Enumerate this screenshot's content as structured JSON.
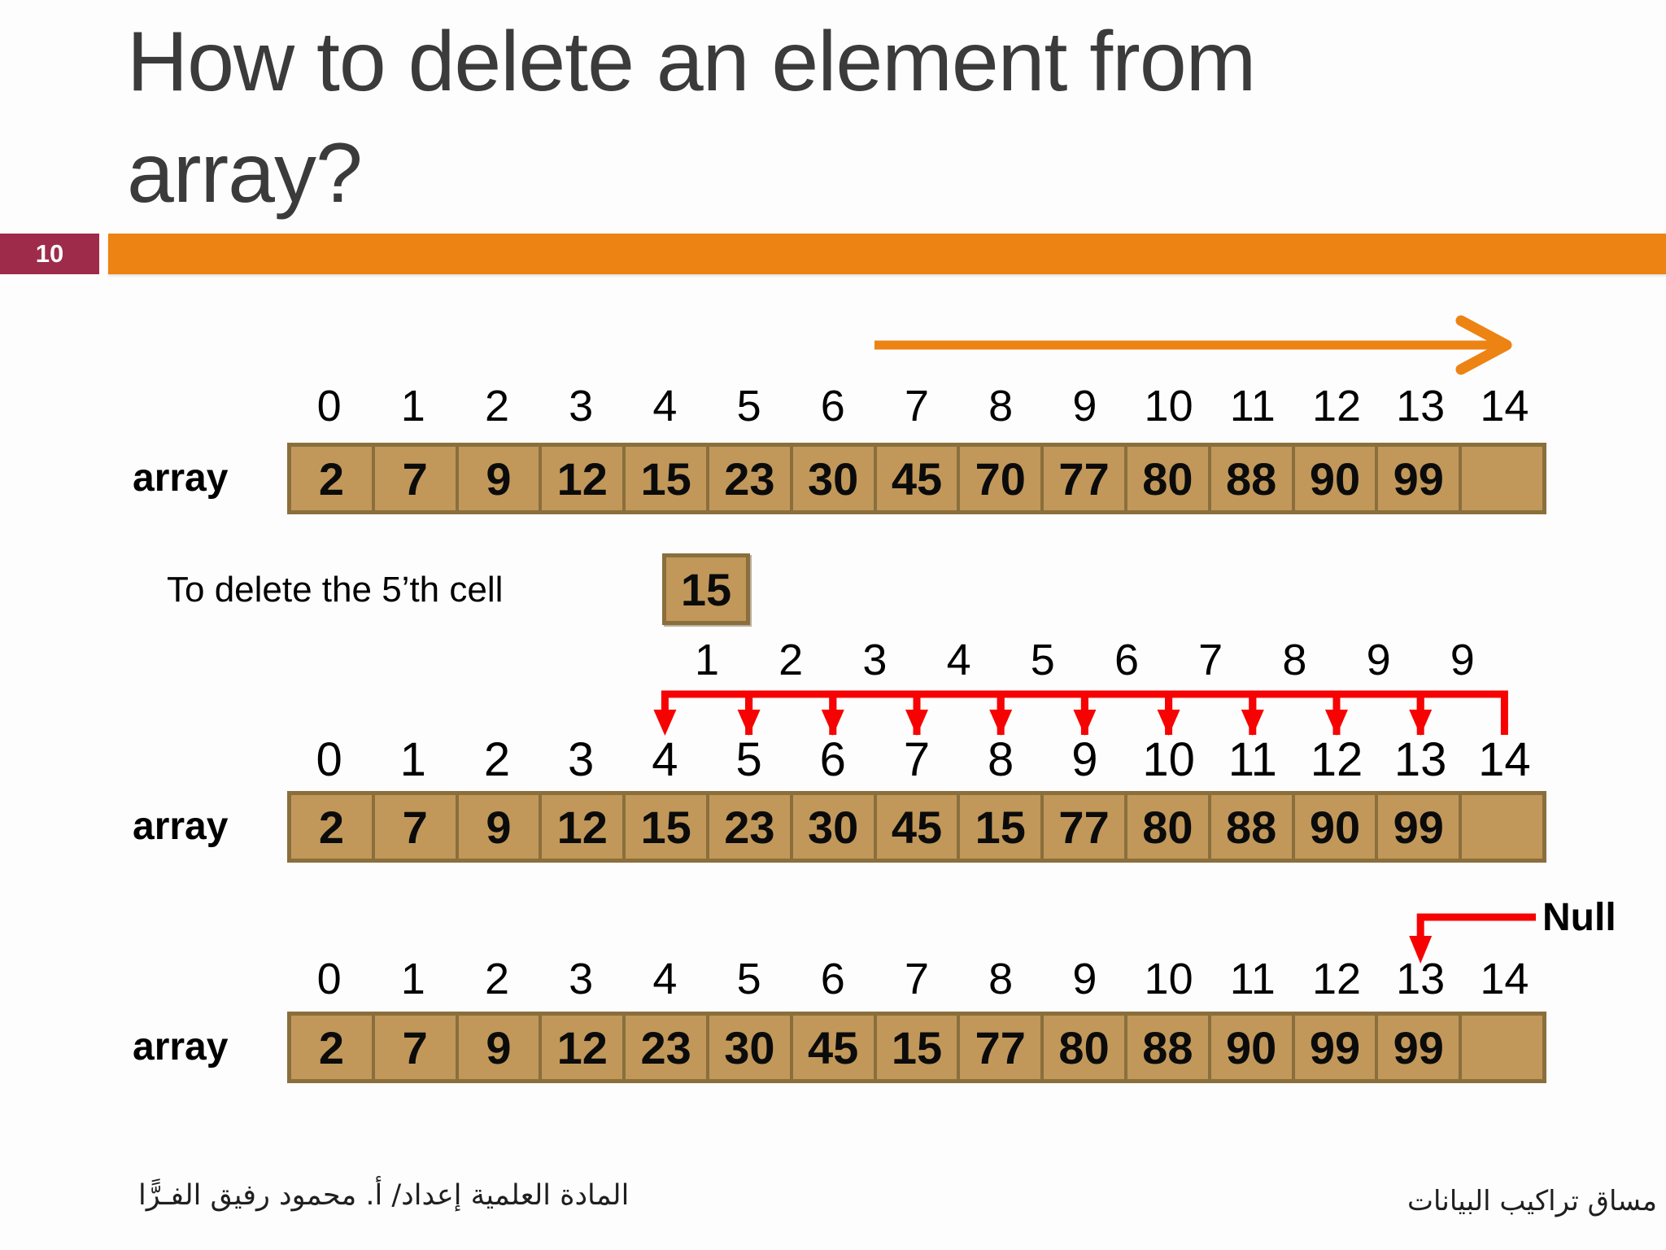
{
  "page_number": "10",
  "title": "How to delete an element from array?",
  "array_label": "array",
  "caption": "To delete the 5’th cell",
  "deleted_cell_value": "15",
  "null_label": "Null",
  "footer_left": "المادة العلمية إعداد/ أ. محمود رفيق الفـرًّا",
  "footer_right": "مساق تراكيب البيانات",
  "indices": [
    "0",
    "1",
    "2",
    "3",
    "4",
    "5",
    "6",
    "7",
    "8",
    "9",
    "10",
    "11",
    "12",
    "13",
    "14"
  ],
  "shift_step_labels": [
    "1",
    "2",
    "3",
    "4",
    "5",
    "6",
    "7",
    "8",
    "9",
    "9"
  ],
  "arrays": [
    {
      "values": [
        "2",
        "7",
        "9",
        "12",
        "15",
        "23",
        "30",
        "45",
        "70",
        "77",
        "80",
        "88",
        "90",
        "99",
        ""
      ]
    },
    {
      "values": [
        "2",
        "7",
        "9",
        "12",
        "15",
        "23",
        "30",
        "45",
        "15",
        "77",
        "80",
        "88",
        "90",
        "99",
        ""
      ]
    },
    {
      "values": [
        "2",
        "7",
        "9",
        "12",
        "23",
        "30",
        "45",
        "15",
        "77",
        "80",
        "88",
        "90",
        "99",
        "99",
        ""
      ]
    }
  ],
  "icons": {
    "orange_direction_arrow": "right-arrow",
    "shift_arrow": "down-left-bracket-arrow",
    "null_arrow": "down-left-bracket-arrow"
  },
  "colors": {
    "accent_orange": "#ED8312",
    "badge_maroon": "#9E2B4A",
    "cell_fill": "#C1985A",
    "cell_border": "#8A6F3C",
    "arrow_red": "#F70202",
    "title_gray": "#3B3B3B"
  }
}
